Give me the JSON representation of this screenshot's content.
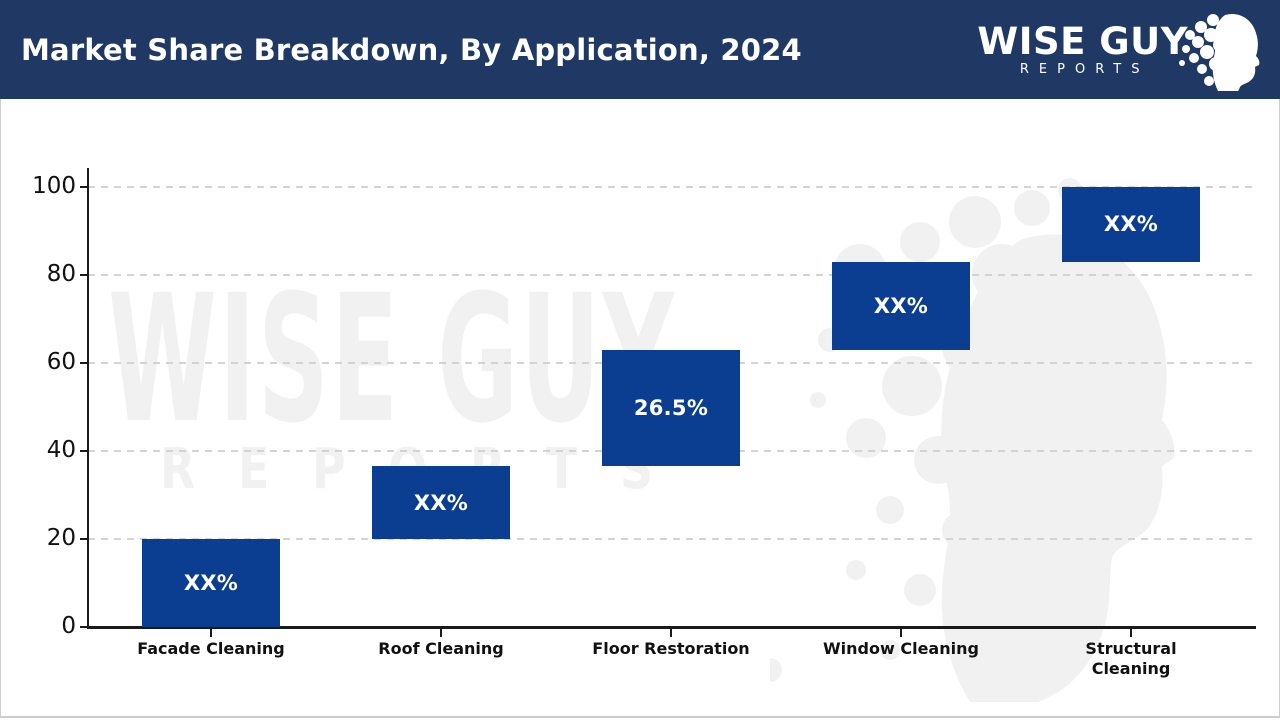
{
  "header": {
    "title": "Market Share Breakdown, By Application, 2024",
    "logo": {
      "line1": "WISE GUY",
      "line2": "REPORTS"
    }
  },
  "watermark": {
    "line1": "WISE GUY",
    "line2": "REPORTS"
  },
  "colors": {
    "header_bg": "#1f3864",
    "bar": "#0b3d91",
    "grid": "#d3d3d3",
    "axis": "#1a1a1a",
    "watermark": "#f1f1f1",
    "bar_label_text": "#ffffff"
  },
  "chart_data": {
    "type": "bar",
    "variant": "waterfall",
    "title": "Market Share Breakdown, By Application, 2024",
    "categories": [
      "Facade Cleaning",
      "Roof Cleaning",
      "Floor Restoration",
      "Window Cleaning",
      "Structural\nCleaning"
    ],
    "segments": [
      {
        "category": "Facade Cleaning",
        "start": 0,
        "end": 20,
        "value_label": "XX%"
      },
      {
        "category": "Roof Cleaning",
        "start": 20,
        "end": 36.5,
        "value_label": "XX%"
      },
      {
        "category": "Floor Restoration",
        "start": 36.5,
        "end": 63,
        "value_label": "26.5%"
      },
      {
        "category": "Window Cleaning",
        "start": 63,
        "end": 83,
        "value_label": "XX%"
      },
      {
        "category": "Structural Cleaning",
        "start": 83,
        "end": 100,
        "value_label": "XX%"
      }
    ],
    "xlabel": "",
    "ylabel": "",
    "ylim": [
      0,
      100
    ],
    "yticks": [
      0,
      20,
      40,
      60,
      80,
      100
    ],
    "grid": "horizontal dashed",
    "legend": "none",
    "bar_color": "#0b3d91"
  }
}
